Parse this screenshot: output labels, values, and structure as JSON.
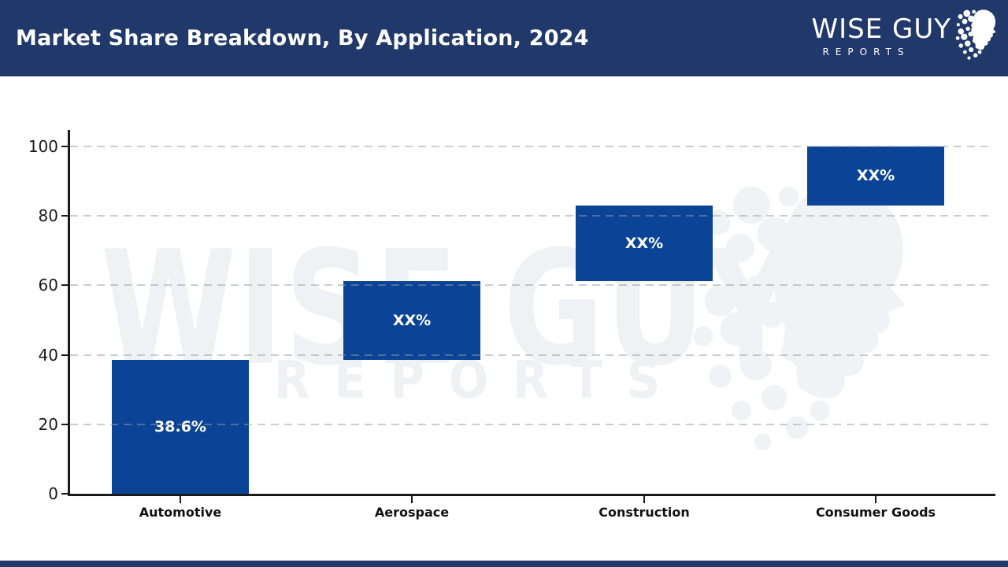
{
  "header": {
    "title": "Market Share Breakdown, By Application, 2024"
  },
  "brand": {
    "line1": "WISE GUY",
    "line2": "REPORTS"
  },
  "watermark": {
    "line1": "WISE GUY",
    "line2": "REPORTS"
  },
  "colors": {
    "header_bg": "#21386b",
    "bar_fill": "#0b4496",
    "bar_label": "#ffffff",
    "watermark_gray": "#eff1f4",
    "axis": "#1a1a1a",
    "gridline": "#a0a5aa",
    "footer_strip": "#21386b"
  },
  "chart_data": {
    "type": "bar",
    "subtype": "floating-waterfall",
    "title": "Market Share Breakdown, By Application, 2024",
    "categories": [
      "Automotive",
      "Aerospace",
      "Construction",
      "Consumer Goods"
    ],
    "segments": [
      {
        "category": "Automotive",
        "start": 0,
        "end": 38.6,
        "label": "38.6%"
      },
      {
        "category": "Aerospace",
        "start": 38.6,
        "end": 61.2,
        "label": "XX%"
      },
      {
        "category": "Construction",
        "start": 61.2,
        "end": 83.0,
        "label": "XX%"
      },
      {
        "category": "Consumer Goods",
        "start": 83.0,
        "end": 100.0,
        "label": "XX%"
      }
    ],
    "yticks": [
      0,
      20,
      40,
      60,
      80,
      100
    ],
    "ylim": [
      0,
      105
    ],
    "xlabel": "",
    "ylabel": "",
    "grid": "horizontal-dashed",
    "legend": "none"
  }
}
